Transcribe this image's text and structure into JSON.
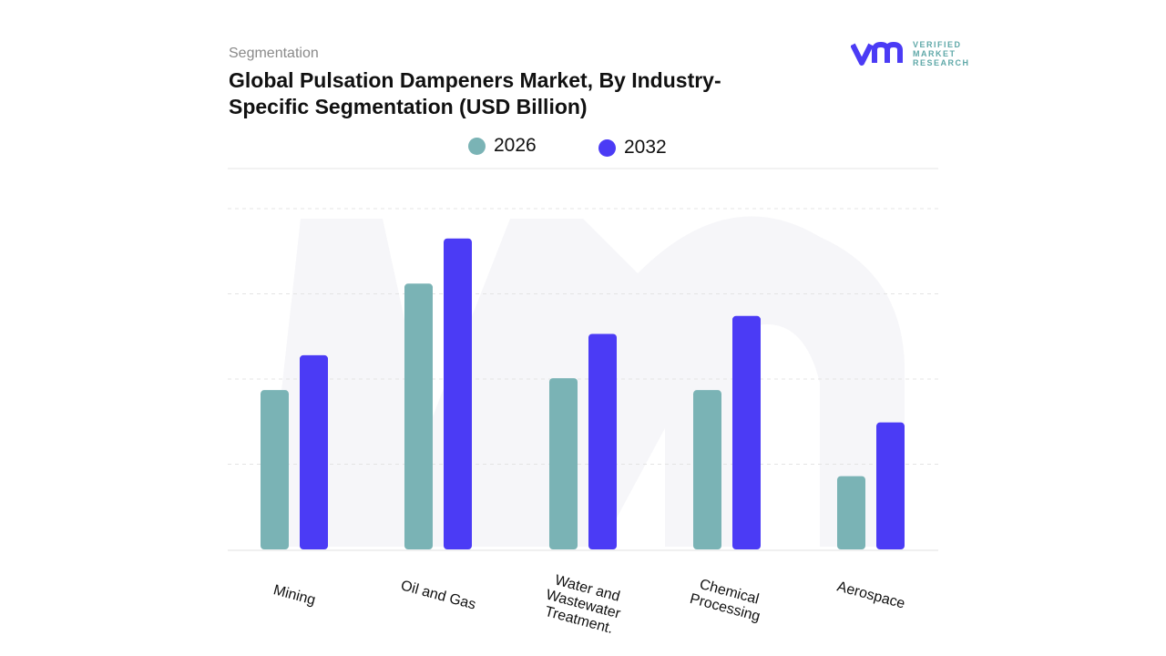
{
  "header": {
    "section": "Segmentation",
    "title_line1": "Global Pulsation Dampeners Market, By Industry-",
    "title_line2": "Specific Segmentation (USD Billion)"
  },
  "logo": {
    "line1": "VERIFIED",
    "line2": "MARKET",
    "line3": "RESEARCH"
  },
  "chart_data": {
    "type": "bar",
    "title": "Global Pulsation Dampeners Market, By Industry-Specific Segmentation (USD Billion)",
    "categories": [
      "Mining",
      "Oil and Gas",
      "Water and\nWastewater\nTreatment.",
      "Chemical\nProcessing",
      "Aerospace"
    ],
    "series": [
      {
        "name": "2026",
        "color": "#7AB3B5",
        "values": [
          1.87,
          3.12,
          2.01,
          1.87,
          0.86
        ]
      },
      {
        "name": "2032",
        "color": "#4B3BF5",
        "values": [
          2.28,
          3.65,
          2.53,
          2.74,
          1.49
        ]
      }
    ],
    "ylim": [
      0,
      4
    ],
    "grid": true,
    "legend": "top"
  }
}
